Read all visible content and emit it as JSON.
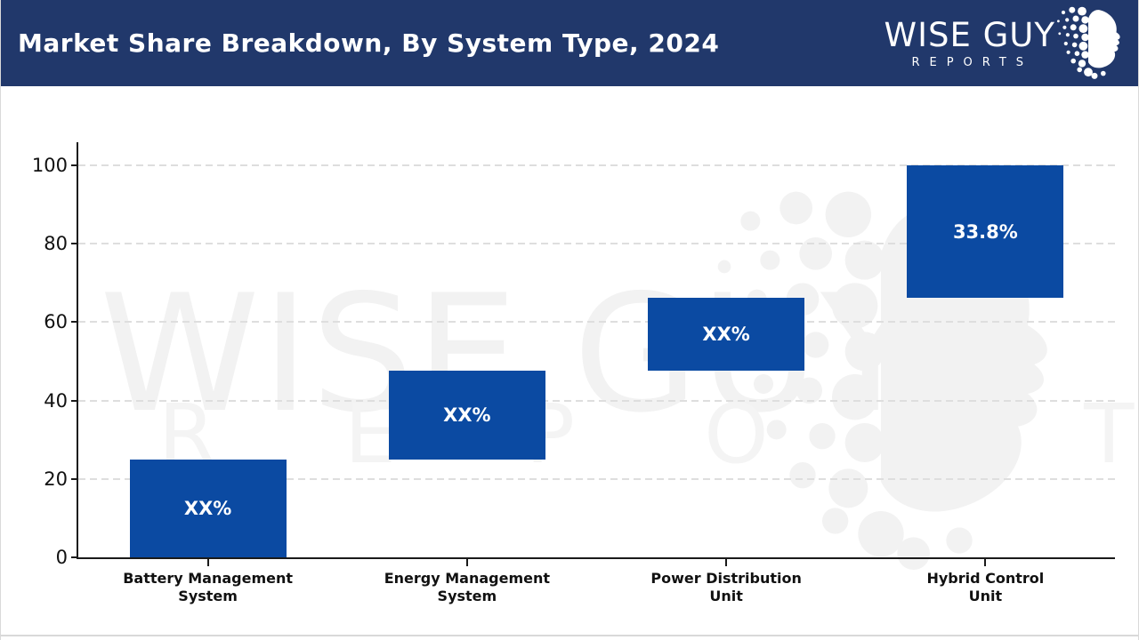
{
  "header": {
    "title": "Market Share Breakdown, By System Type, 2024",
    "logo": {
      "name": "WISE GUY",
      "sub": "REPORTS"
    }
  },
  "watermark": {
    "name": "WISE GUY",
    "sub": "R E P O R T S"
  },
  "colors": {
    "header_bg": "#21386B",
    "bar_fill": "#0B4AA2",
    "bar_label_text": "#FFFFFF",
    "gridline": "#DEDEDE",
    "axis": "#1A1A1A",
    "watermark": "#F2F2F2"
  },
  "chart_data": {
    "type": "bar",
    "subtype": "floating-waterfall",
    "title": "Market Share Breakdown, By System Type, 2024",
    "xlabel": "",
    "ylabel": "",
    "ylim": [
      0,
      100
    ],
    "yticks": [
      0,
      20,
      40,
      60,
      80,
      100
    ],
    "grid": "horizontal-dashed",
    "legend": "none",
    "categories": [
      "Battery Management\nSystem",
      "Energy Management\nSystem",
      "Power Distribution\nUnit",
      "Hybrid Control\nUnit"
    ],
    "series": [
      {
        "name": "Market Share",
        "segments": [
          {
            "start": 0,
            "end": 25,
            "label": "XX%"
          },
          {
            "start": 25,
            "end": 47.6,
            "label": "XX%"
          },
          {
            "start": 47.6,
            "end": 66.2,
            "label": "XX%"
          },
          {
            "start": 66.2,
            "end": 100,
            "label": "33.8%"
          }
        ]
      }
    ]
  }
}
